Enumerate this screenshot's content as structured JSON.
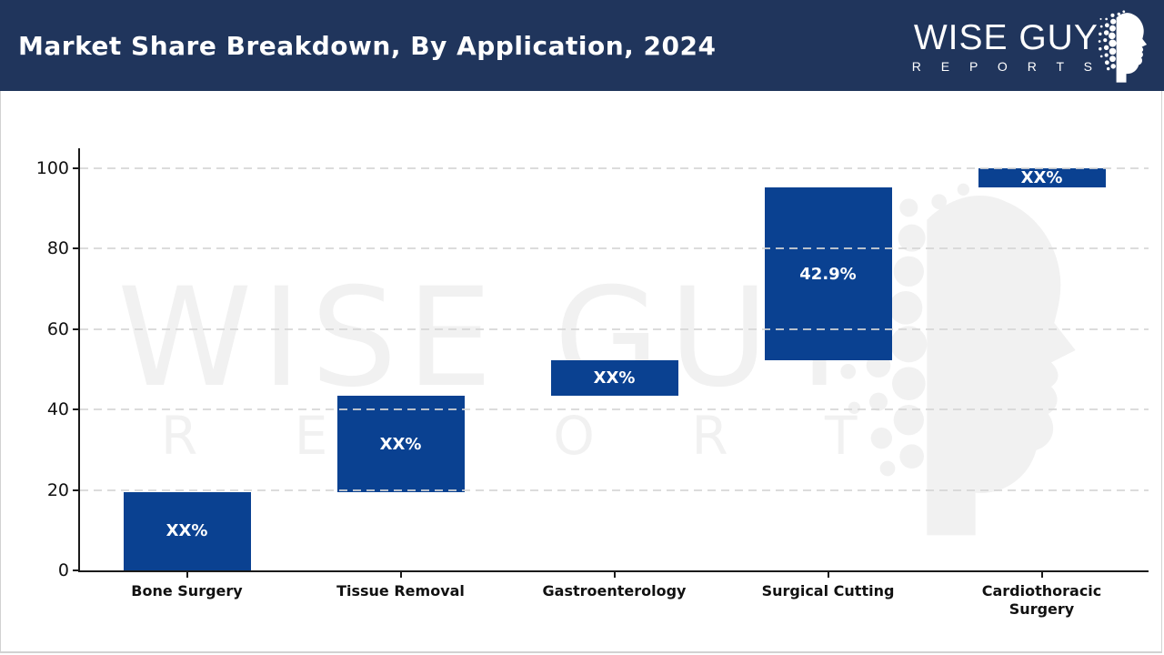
{
  "header": {
    "title": "Market Share Breakdown, By Application, 2024",
    "bg_color": "#20355c",
    "brand": {
      "name_line": "WISE GUY",
      "reports_line": "R E P O R T S"
    }
  },
  "watermark": {
    "line1": "WISE GUY",
    "line2": "R E P O R T S"
  },
  "chart_data": {
    "type": "bar",
    "variant": "floating-waterfall",
    "title": "Market Share Breakdown, By Application, 2024",
    "categories": [
      "Bone Surgery",
      "Tissue Removal",
      "Gastroenterology",
      "Surgical Cutting",
      "Cardiothoracic\nSurgery"
    ],
    "series": [
      {
        "name": "Market Share (%)",
        "segments": [
          {
            "category": "Bone Surgery",
            "start": 0,
            "end": 19.5,
            "label": "XX%"
          },
          {
            "category": "Tissue Removal",
            "start": 19.5,
            "end": 43.4,
            "label": "XX%"
          },
          {
            "category": "Gastroenterology",
            "start": 43.4,
            "end": 52.3,
            "label": "XX%"
          },
          {
            "category": "Surgical Cutting",
            "start": 52.3,
            "end": 95.2,
            "label": "42.9%"
          },
          {
            "category": "Cardiothoracic Surgery",
            "start": 95.2,
            "end": 100,
            "label": "XX%"
          }
        ]
      }
    ],
    "xlabel": "",
    "ylabel": "",
    "ylim": [
      0,
      105
    ],
    "yticks": [
      0,
      20,
      40,
      60,
      80,
      100
    ],
    "grid": "dashed-horizontal",
    "legend": "none",
    "bar_color": "#0a4191",
    "bar_label_color": "#ffffff",
    "grid_color": "#d6d6d6",
    "axis_color": "#1a1a1a",
    "watermark_color": "#f1f1f1"
  }
}
